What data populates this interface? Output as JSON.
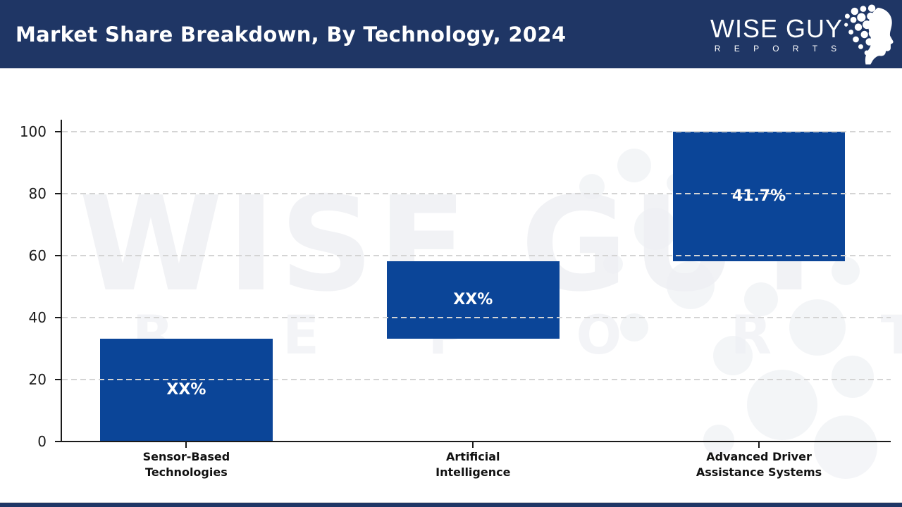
{
  "header": {
    "title": "Market Share Breakdown, By Technology, 2024",
    "logo_line1": "WISE GUY",
    "logo_line2": "R E P O R T S"
  },
  "watermark": {
    "line1": "WISE GUY",
    "line2": "R E P O R T S"
  },
  "chart_data": {
    "type": "bar",
    "subtype": "waterfall",
    "title": "Market Share Breakdown, By Technology, 2024",
    "categories": [
      "Sensor-Based Technologies",
      "Artificial Intelligence",
      "Advanced Driver Assistance Systems"
    ],
    "bars": [
      {
        "category_lines": [
          "Sensor-Based",
          "Technologies"
        ],
        "start": 0,
        "end": 33.3,
        "size": 33.3,
        "label": "XX%"
      },
      {
        "category_lines": [
          "Artificial",
          "Intelligence"
        ],
        "start": 33.3,
        "end": 58.3,
        "size": 25.0,
        "label": "XX%"
      },
      {
        "category_lines": [
          "Advanced Driver",
          "Assistance Systems"
        ],
        "start": 58.3,
        "end": 100,
        "size": 41.7,
        "label": "41.7%"
      }
    ],
    "yticks": [
      0,
      20,
      40,
      60,
      80,
      100
    ],
    "ylim": [
      0,
      103.9
    ],
    "xlabel": "",
    "ylabel": "",
    "grid": "horizontal dashed, drawn over bars",
    "legend": "none",
    "layout": {
      "centers_pct": [
        15.0,
        49.6,
        84.1
      ],
      "bar_width_pct": 20.8
    }
  },
  "colors": {
    "header_bg": "#1f3665",
    "bar_fill": "#0b4598",
    "bar_label": "#ffffff",
    "grid": "#d4d4d4",
    "axis": "#1a1a1a",
    "watermark": "#f1f2f5",
    "footer_bg": "#1f3665"
  }
}
